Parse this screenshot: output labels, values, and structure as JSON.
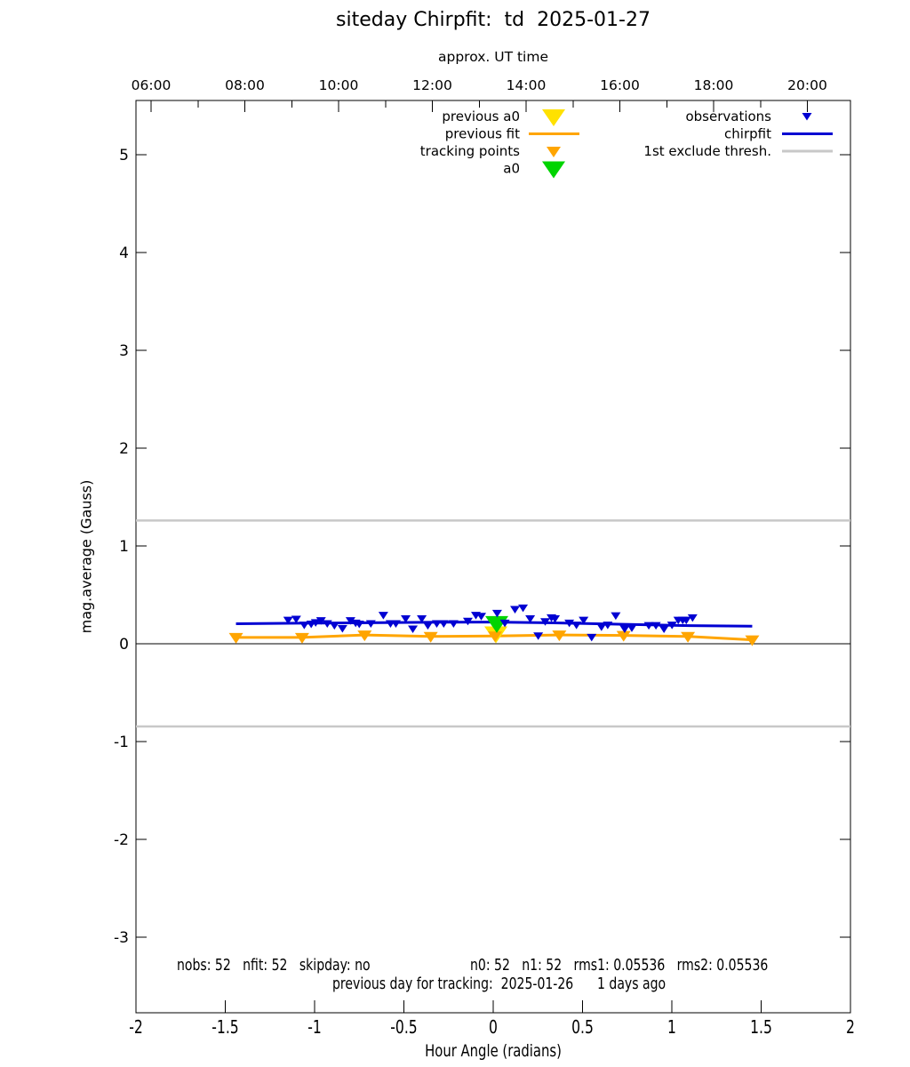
{
  "title": "siteday Chirpfit:  td  2025-01-27",
  "colors": {
    "observations": "#0000D2",
    "chirpfit": "#0000D2",
    "previous_fit": "#FFA500",
    "tracking_points": "#FFA500",
    "previous_a0": "#FFE100",
    "a0": "#00D400",
    "exclude_threshold": "#C8C8C8",
    "axis": "#000000"
  },
  "stats": {
    "line1_left": "nobs: 52   nfit: 52   skipday: no",
    "line1_right": "n0: 52   n1: 52   rms1: 0.05536   rms2: 0.05536",
    "line2": "previous day for tracking:  2025-01-26      1 days ago"
  },
  "legend": {
    "columns": [
      {
        "items": [
          {
            "label": "previous a0",
            "marker": "triangle-down",
            "size": "large",
            "color": "#FFE100"
          },
          {
            "label": "previous fit",
            "marker": "line",
            "color": "#FFA500"
          },
          {
            "label": "tracking points",
            "marker": "triangle-down",
            "size": "medium",
            "color": "#FFA500"
          },
          {
            "label": "a0",
            "marker": "triangle-down",
            "size": "large",
            "color": "#00D400"
          }
        ]
      },
      {
        "items": [
          {
            "label": "observations",
            "marker": "triangle-down",
            "size": "small",
            "color": "#0000D2"
          },
          {
            "label": "chirpfit",
            "marker": "line",
            "color": "#0000D2"
          },
          {
            "label": "1st exclude thresh.",
            "marker": "line",
            "color": "#C8C8C8"
          }
        ]
      }
    ]
  },
  "chart_data": {
    "type": "scatter",
    "title": "siteday Chirpfit:  td  2025-01-27",
    "xlabel": "Hour Angle (radians)",
    "ylabel": "mag.average (Gauss)",
    "x2label": "approx. UT time",
    "xlim": [
      -2,
      2
    ],
    "ylim": [
      -3.77,
      5.55
    ],
    "grid": false,
    "legend_position": "top-inside",
    "x_ticks": {
      "major": [
        -2,
        -1.5,
        -1,
        -0.5,
        0,
        0.5,
        1,
        1.5,
        2
      ],
      "labels": [
        "-2",
        "-1.5",
        "-1",
        "-0.5",
        "0",
        "0.5",
        "1",
        "1.5",
        "2"
      ]
    },
    "y_ticks": {
      "major": [
        -3,
        -2,
        -1,
        0,
        1,
        2,
        3,
        4,
        5
      ],
      "labels": [
        "-3",
        "-2",
        "-1",
        "0",
        "1",
        "2",
        "3",
        "4",
        "5"
      ]
    },
    "x2_ticks": {
      "major_hours": [
        6,
        8,
        10,
        12,
        14,
        16,
        18,
        20
      ],
      "labels": [
        "06:00",
        "08:00",
        "10:00",
        "12:00",
        "14:00",
        "16:00",
        "18:00",
        "20:00"
      ],
      "minor_hours": [
        7,
        9,
        11,
        13,
        15,
        17,
        19
      ]
    },
    "zero_line": true,
    "series": [
      {
        "name": "1st exclude thresh.",
        "type": "hline",
        "color": "#C8C8C8",
        "width": 2.5,
        "values": [
          1.26,
          -0.845
        ]
      },
      {
        "name": "previous fit",
        "type": "line",
        "color": "#FFA500",
        "width": 3,
        "points": [
          [
            -1.44,
            0.065
          ],
          [
            -1.07,
            0.065
          ],
          [
            -0.72,
            0.09
          ],
          [
            -0.35,
            0.075
          ],
          [
            0.01,
            0.08
          ],
          [
            0.37,
            0.09
          ],
          [
            0.73,
            0.085
          ],
          [
            1.09,
            0.075
          ],
          [
            1.45,
            0.04
          ]
        ]
      },
      {
        "name": "chirpfit",
        "type": "line",
        "color": "#0000D2",
        "width": 3,
        "points": [
          [
            -1.44,
            0.205
          ],
          [
            -1.1,
            0.21
          ],
          [
            -0.7,
            0.215
          ],
          [
            -0.3,
            0.22
          ],
          [
            0.0,
            0.222
          ],
          [
            0.3,
            0.215
          ],
          [
            0.7,
            0.2
          ],
          [
            1.1,
            0.185
          ],
          [
            1.45,
            0.18
          ]
        ]
      },
      {
        "name": "previous a0",
        "type": "scatter",
        "marker": "triangle-down",
        "size": "large",
        "color": "#FFE100",
        "points": [
          [
            0.015,
            0.105
          ]
        ]
      },
      {
        "name": "tracking points",
        "type": "scatter",
        "marker": "triangle-down",
        "size": "medium",
        "color": "#FFA500",
        "points": [
          [
            -1.44,
            0.065
          ],
          [
            -1.07,
            0.065
          ],
          [
            -0.72,
            0.09
          ],
          [
            -0.35,
            0.075
          ],
          [
            0.01,
            0.08
          ],
          [
            0.37,
            0.09
          ],
          [
            0.73,
            0.085
          ],
          [
            1.09,
            0.075
          ],
          [
            1.45,
            0.04
          ]
        ]
      },
      {
        "name": "a0",
        "type": "scatter",
        "marker": "triangle-down",
        "size": "large",
        "color": "#00D400",
        "points": [
          [
            0.02,
            0.21
          ]
        ]
      },
      {
        "name": "observations",
        "type": "scatter",
        "marker": "triangle-down",
        "size": "small",
        "color": "#0000D2",
        "points": [
          [
            -1.148,
            0.24
          ],
          [
            -1.103,
            0.25
          ],
          [
            -1.058,
            0.19
          ],
          [
            -1.019,
            0.2
          ],
          [
            -0.994,
            0.215
          ],
          [
            -0.964,
            0.235
          ],
          [
            -0.929,
            0.205
          ],
          [
            -0.889,
            0.185
          ],
          [
            -0.844,
            0.155
          ],
          [
            -0.799,
            0.235
          ],
          [
            -0.77,
            0.21
          ],
          [
            -0.75,
            0.2
          ],
          [
            -0.685,
            0.205
          ],
          [
            -0.615,
            0.29
          ],
          [
            -0.575,
            0.205
          ],
          [
            -0.545,
            0.205
          ],
          [
            -0.49,
            0.255
          ],
          [
            -0.45,
            0.15
          ],
          [
            -0.4,
            0.255
          ],
          [
            -0.366,
            0.185
          ],
          [
            -0.316,
            0.205
          ],
          [
            -0.277,
            0.205
          ],
          [
            -0.222,
            0.205
          ],
          [
            -0.142,
            0.23
          ],
          [
            -0.097,
            0.29
          ],
          [
            -0.067,
            0.28
          ],
          [
            0.022,
            0.31
          ],
          [
            0.065,
            0.21
          ],
          [
            0.122,
            0.35
          ],
          [
            0.167,
            0.365
          ],
          [
            0.207,
            0.255
          ],
          [
            0.252,
            0.08
          ],
          [
            0.291,
            0.225
          ],
          [
            0.326,
            0.265
          ],
          [
            0.346,
            0.255
          ],
          [
            0.426,
            0.21
          ],
          [
            0.466,
            0.19
          ],
          [
            0.506,
            0.24
          ],
          [
            0.551,
            0.065
          ],
          [
            0.606,
            0.17
          ],
          [
            0.641,
            0.19
          ],
          [
            0.686,
            0.285
          ],
          [
            0.736,
            0.15
          ],
          [
            0.776,
            0.16
          ],
          [
            0.871,
            0.185
          ],
          [
            0.911,
            0.185
          ],
          [
            0.956,
            0.15
          ],
          [
            1.001,
            0.19
          ],
          [
            1.036,
            0.24
          ],
          [
            1.061,
            0.24
          ],
          [
            1.081,
            0.24
          ],
          [
            1.116,
            0.265
          ]
        ]
      }
    ]
  }
}
